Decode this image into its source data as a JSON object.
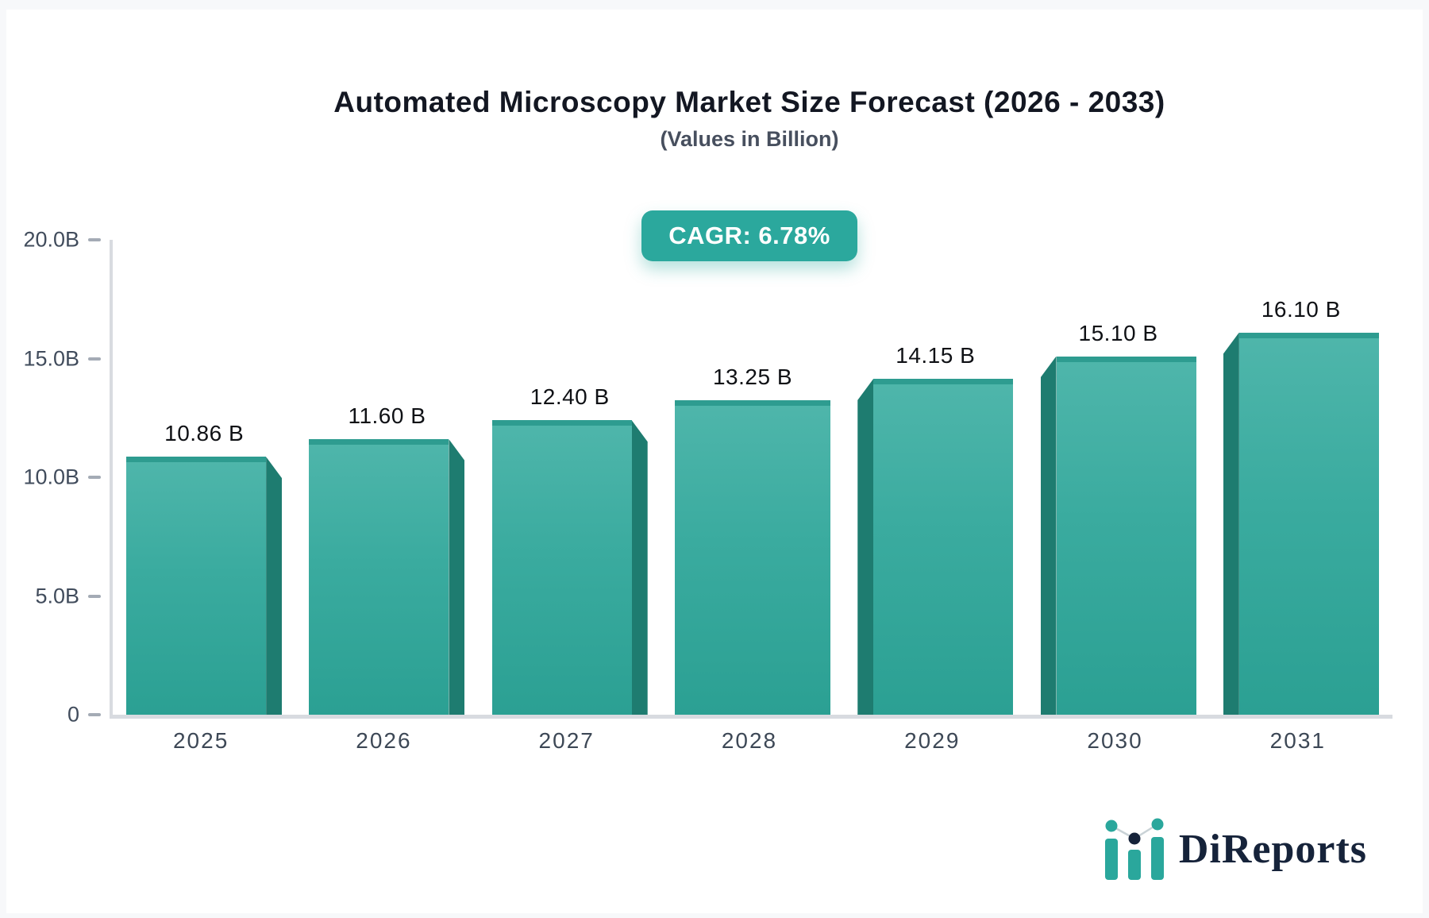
{
  "page": {
    "background": "#f7f8fa",
    "card_background": "#ffffff"
  },
  "header": {
    "title": "Automated Microscopy Market Size Forecast (2026 - 2033)",
    "subtitle": "(Values in Billion)"
  },
  "badge": {
    "label": "CAGR: 6.78%",
    "background": "#2BA89D",
    "text_color": "#ffffff"
  },
  "chart_data": {
    "type": "bar",
    "categories": [
      "2025",
      "2026",
      "2027",
      "2028",
      "2029",
      "2030",
      "2031"
    ],
    "values": [
      10.86,
      11.6,
      12.4,
      13.25,
      14.15,
      15.1,
      16.1
    ],
    "value_labels": [
      "10.86 B",
      "11.60 B",
      "12.40 B",
      "13.25 B",
      "14.15 B",
      "15.10 B",
      "16.10 B"
    ],
    "title": "Automated Microscopy Market Size Forecast (2026 - 2033)",
    "subtitle": "(Values in Billion)",
    "cagr": "6.78%",
    "xlabel": "",
    "ylabel": "",
    "ylim": [
      0,
      20
    ],
    "yticks": [
      {
        "label": "20.0B",
        "value": 20
      },
      {
        "label": "15.0B",
        "value": 15
      },
      {
        "label": "10.0B",
        "value": 10
      },
      {
        "label": "5.0B",
        "value": 5
      },
      {
        "label": "0",
        "value": 0
      }
    ],
    "grid": false,
    "legend_position": "none",
    "bar_style": {
      "face_top": "#4FB6AB",
      "face_bottom": "#2BA093",
      "top_cap": "#2E9C90",
      "side_shadow": "#1E7C70",
      "effect": "3d-bevel, shadow on right for left bars, on left for right bars"
    },
    "axis_color": "#D8DBE0",
    "tick_text_color": "#414C5C"
  },
  "logo": {
    "text": "DiReports",
    "icon": "bar-line-chart-icon",
    "text_color": "#16233A",
    "accent_color": "#2AA79C"
  }
}
